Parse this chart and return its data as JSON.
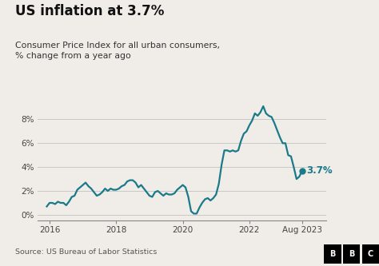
{
  "title": "US inflation at 3.7%",
  "subtitle": "Consumer Price Index for all urban consumers,\n% change from a year ago",
  "source": "Source: US Bureau of Labor Statistics",
  "line_color": "#1a7a8a",
  "bg_color": "#f0ede8",
  "annotation_text": "3.7%",
  "yticks": [
    0,
    2,
    4,
    6,
    8
  ],
  "ylim": [
    -0.5,
    10.2
  ],
  "xlim_start": 2015.65,
  "xlim_end": 2024.3,
  "xtick_labels": [
    "2016",
    "2018",
    "2020",
    "2022",
    "Aug 2023"
  ],
  "xtick_values": [
    2016,
    2018,
    2020,
    2022,
    2023.583
  ],
  "data": [
    [
      2015.917,
      0.7
    ],
    [
      2016.0,
      1.0
    ],
    [
      2016.083,
      1.0
    ],
    [
      2016.167,
      0.9
    ],
    [
      2016.25,
      1.1
    ],
    [
      2016.333,
      1.0
    ],
    [
      2016.417,
      1.0
    ],
    [
      2016.5,
      0.8
    ],
    [
      2016.583,
      1.1
    ],
    [
      2016.667,
      1.5
    ],
    [
      2016.75,
      1.6
    ],
    [
      2016.833,
      2.1
    ],
    [
      2017.0,
      2.5
    ],
    [
      2017.083,
      2.7
    ],
    [
      2017.167,
      2.4
    ],
    [
      2017.25,
      2.2
    ],
    [
      2017.333,
      1.9
    ],
    [
      2017.417,
      1.6
    ],
    [
      2017.5,
      1.7
    ],
    [
      2017.583,
      1.9
    ],
    [
      2017.667,
      2.2
    ],
    [
      2017.75,
      2.0
    ],
    [
      2017.833,
      2.2
    ],
    [
      2017.917,
      2.1
    ],
    [
      2018.0,
      2.1
    ],
    [
      2018.083,
      2.2
    ],
    [
      2018.167,
      2.4
    ],
    [
      2018.25,
      2.5
    ],
    [
      2018.333,
      2.8
    ],
    [
      2018.417,
      2.9
    ],
    [
      2018.5,
      2.9
    ],
    [
      2018.583,
      2.7
    ],
    [
      2018.667,
      2.3
    ],
    [
      2018.75,
      2.5
    ],
    [
      2018.833,
      2.2
    ],
    [
      2018.917,
      1.9
    ],
    [
      2019.0,
      1.6
    ],
    [
      2019.083,
      1.5
    ],
    [
      2019.167,
      1.9
    ],
    [
      2019.25,
      2.0
    ],
    [
      2019.333,
      1.8
    ],
    [
      2019.417,
      1.6
    ],
    [
      2019.5,
      1.8
    ],
    [
      2019.583,
      1.7
    ],
    [
      2019.667,
      1.7
    ],
    [
      2019.75,
      1.8
    ],
    [
      2019.833,
      2.1
    ],
    [
      2019.917,
      2.3
    ],
    [
      2020.0,
      2.5
    ],
    [
      2020.083,
      2.3
    ],
    [
      2020.167,
      1.5
    ],
    [
      2020.25,
      0.3
    ],
    [
      2020.333,
      0.1
    ],
    [
      2020.417,
      0.1
    ],
    [
      2020.5,
      0.6
    ],
    [
      2020.583,
      1.0
    ],
    [
      2020.667,
      1.3
    ],
    [
      2020.75,
      1.4
    ],
    [
      2020.833,
      1.2
    ],
    [
      2020.917,
      1.4
    ],
    [
      2021.0,
      1.7
    ],
    [
      2021.083,
      2.6
    ],
    [
      2021.167,
      4.2
    ],
    [
      2021.25,
      5.4
    ],
    [
      2021.333,
      5.4
    ],
    [
      2021.417,
      5.3
    ],
    [
      2021.5,
      5.4
    ],
    [
      2021.583,
      5.3
    ],
    [
      2021.667,
      5.4
    ],
    [
      2021.75,
      6.2
    ],
    [
      2021.833,
      6.8
    ],
    [
      2021.917,
      7.0
    ],
    [
      2022.0,
      7.5
    ],
    [
      2022.083,
      7.9
    ],
    [
      2022.167,
      8.5
    ],
    [
      2022.25,
      8.3
    ],
    [
      2022.333,
      8.6
    ],
    [
      2022.417,
      9.1
    ],
    [
      2022.5,
      8.5
    ],
    [
      2022.583,
      8.3
    ],
    [
      2022.667,
      8.2
    ],
    [
      2022.75,
      7.7
    ],
    [
      2022.833,
      7.1
    ],
    [
      2022.917,
      6.5
    ],
    [
      2023.0,
      6.0
    ],
    [
      2023.083,
      6.0
    ],
    [
      2023.167,
      5.0
    ],
    [
      2023.25,
      4.9
    ],
    [
      2023.333,
      4.0
    ],
    [
      2023.417,
      3.0
    ],
    [
      2023.5,
      3.2
    ],
    [
      2023.583,
      3.7
    ]
  ]
}
